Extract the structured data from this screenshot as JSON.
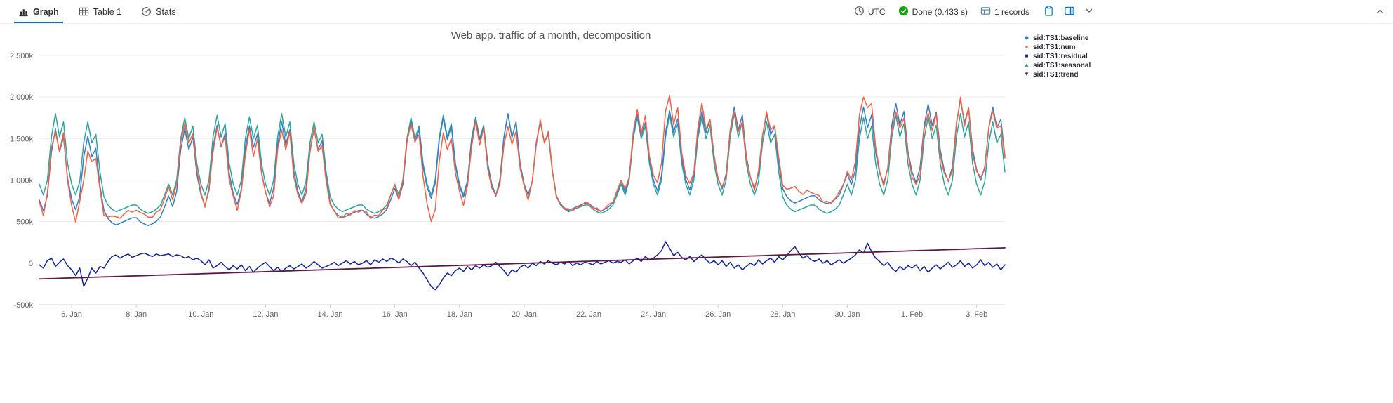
{
  "tabs": [
    {
      "label": "Graph",
      "active": true
    },
    {
      "label": "Table 1",
      "active": false
    },
    {
      "label": "Stats",
      "active": false
    }
  ],
  "statusbar": {
    "timezone": "UTC",
    "done": "Done (0.433 s)",
    "records": "1 records"
  },
  "colors": {
    "accent_underline": "#0f6cbd",
    "action_blue": "#0078d4",
    "success_green": "#13a10e",
    "icon_gray": "#605e5c",
    "axis_text": "#666666",
    "gridline": "#ececec"
  },
  "chart_data": {
    "type": "line",
    "title": "Web app. traffic of a month, decomposition",
    "unit": "k (thousands of requests)",
    "x_start": "2023-01-05T00:00:00Z",
    "step_hours": 3,
    "points_per_day": 8,
    "n_points": 240,
    "start_day_of_week": "Thursday",
    "start_day_of_week_index_monday0": 3,
    "ylim_k": [
      -500,
      2500
    ],
    "grid": true,
    "legend_position": "top-right",
    "y_ticks": [
      {
        "label": "-500k",
        "value_k": -500
      },
      {
        "label": "0",
        "value_k": 0
      },
      {
        "label": "500k",
        "value_k": 500
      },
      {
        "label": "1,000k",
        "value_k": 1000
      },
      {
        "label": "1,500k",
        "value_k": 1500
      },
      {
        "label": "2,000k",
        "value_k": 2000
      },
      {
        "label": "2,500k",
        "value_k": 2500
      }
    ],
    "x_ticks": [
      {
        "label": "6. Jan",
        "day_offset": 1
      },
      {
        "label": "8. Jan",
        "day_offset": 3
      },
      {
        "label": "10. Jan",
        "day_offset": 5
      },
      {
        "label": "12. Jan",
        "day_offset": 7
      },
      {
        "label": "14. Jan",
        "day_offset": 9
      },
      {
        "label": "16. Jan",
        "day_offset": 11
      },
      {
        "label": "18. Jan",
        "day_offset": 13
      },
      {
        "label": "20. Jan",
        "day_offset": 15
      },
      {
        "label": "22. Jan",
        "day_offset": 17
      },
      {
        "label": "24. Jan",
        "day_offset": 19
      },
      {
        "label": "26. Jan",
        "day_offset": 21
      },
      {
        "label": "28. Jan",
        "day_offset": 23
      },
      {
        "label": "30. Jan",
        "day_offset": 25
      },
      {
        "label": "1. Feb",
        "day_offset": 27
      },
      {
        "label": "3. Feb",
        "day_offset": 29
      }
    ],
    "series": [
      {
        "key": "baseline",
        "name": "sid:TS1:baseline",
        "color": "#367dcc",
        "marker": "diamond",
        "width": 1.5,
        "derivation": "seasonal + trend"
      },
      {
        "key": "num",
        "name": "sid:TS1:num",
        "color": "#f85f3f",
        "marker": "circle",
        "width": 1.5,
        "derivation": "baseline + residual"
      },
      {
        "key": "residual",
        "name": "sid:TS1:residual",
        "color": "#10239e",
        "marker": "square",
        "width": 1.5,
        "derivation": "residual_k array"
      },
      {
        "key": "seasonal",
        "name": "sid:TS1:seasonal",
        "color": "#2aa5a0",
        "marker": "triangle",
        "width": 1.5,
        "derivation": "weekly profile repeated"
      },
      {
        "key": "trend",
        "name": "sid:TS1:trend",
        "color": "#5a1846",
        "marker": "triangle-down",
        "width": 1.8,
        "derivation": "linear trend_k.start to trend_k.end"
      }
    ],
    "trend_k": {
      "start": -190,
      "end": 185
    },
    "seasonal_week_profile_k": {
      "hours": [
        0,
        3,
        6,
        9,
        12,
        15,
        18,
        21
      ],
      "order": "Monday first, 8 values per day",
      "values": [
        950,
        820,
        1000,
        1500,
        1750,
        1500,
        1650,
        1200,
        950,
        820,
        1000,
        1520,
        1780,
        1520,
        1680,
        1200,
        950,
        820,
        1000,
        1500,
        1760,
        1500,
        1660,
        1200,
        950,
        820,
        1000,
        1520,
        1800,
        1520,
        1700,
        1200,
        950,
        820,
        980,
        1450,
        1700,
        1450,
        1550,
        1100,
        800,
        700,
        650,
        620,
        640,
        660,
        680,
        700,
        700,
        650,
        620,
        600,
        620,
        650,
        700,
        820
      ]
    },
    "residual_k": [
      -20,
      -60,
      30,
      60,
      -40,
      10,
      50,
      -30,
      -80,
      -150,
      -60,
      -280,
      -180,
      -60,
      -120,
      -40,
      -60,
      20,
      80,
      100,
      60,
      90,
      110,
      70,
      90,
      110,
      120,
      100,
      80,
      110,
      90,
      100,
      110,
      80,
      100,
      90,
      60,
      80,
      40,
      60,
      30,
      -20,
      40,
      -60,
      -30,
      10,
      -40,
      -80,
      -30,
      -70,
      -20,
      -90,
      -40,
      -110,
      -60,
      -20,
      10,
      -40,
      -90,
      -50,
      -100,
      -60,
      -30,
      -70,
      -40,
      -10,
      -60,
      -30,
      20,
      -20,
      -60,
      -40,
      -20,
      10,
      -30,
      0,
      30,
      -10,
      20,
      -20,
      0,
      30,
      -20,
      40,
      10,
      50,
      20,
      60,
      40,
      0,
      50,
      20,
      -30,
      10,
      -60,
      -120,
      -200,
      -280,
      -320,
      -260,
      -180,
      -120,
      -150,
      -90,
      -60,
      -100,
      -40,
      -80,
      -30,
      -60,
      -20,
      -50,
      -30,
      10,
      -40,
      -90,
      -150,
      -80,
      -110,
      -50,
      -20,
      -60,
      0,
      -30,
      20,
      -10,
      30,
      0,
      -20,
      10,
      -10,
      20,
      -30,
      0,
      -20,
      10,
      0,
      -20,
      20,
      -10,
      10,
      30,
      0,
      20,
      10,
      40,
      -10,
      30,
      60,
      20,
      80,
      40,
      60,
      100,
      150,
      260,
      180,
      90,
      130,
      70,
      40,
      80,
      20,
      60,
      100,
      40,
      0,
      30,
      -20,
      30,
      -40,
      10,
      -60,
      -20,
      -80,
      -40,
      0,
      -30,
      40,
      -10,
      30,
      60,
      10,
      80,
      40,
      90,
      150,
      200,
      120,
      60,
      90,
      40,
      20,
      50,
      0,
      30,
      -20,
      10,
      40,
      0,
      30,
      60,
      100,
      160,
      120,
      240,
      140,
      60,
      20,
      -30,
      10,
      -60,
      -100,
      -40,
      -80,
      -30,
      -60,
      -20,
      -90,
      -40,
      -110,
      -60,
      -20,
      -70,
      -30,
      10,
      -50,
      -20,
      30,
      -40,
      0,
      -60,
      -20,
      40,
      -30,
      10,
      -50,
      -10,
      -80,
      -20
    ]
  }
}
